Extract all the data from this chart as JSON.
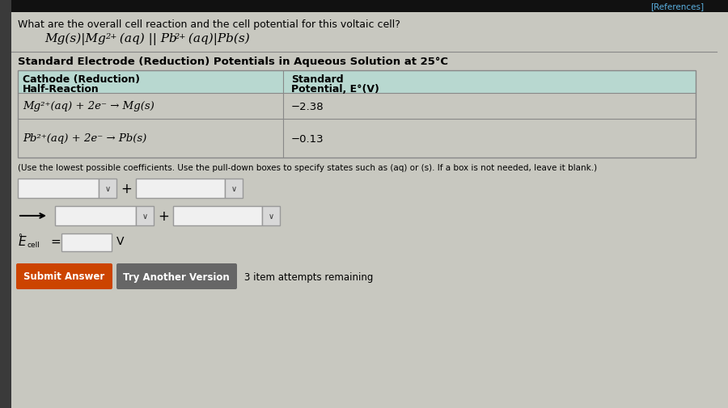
{
  "bg_color": "#c8c8c0",
  "left_strip_color": "#3a3a3a",
  "header_bar_color": "#111111",
  "references_text": "[References]",
  "references_color": "#5aafdf",
  "question": "What are the overall cell reaction and the cell potential for this voltaic cell?",
  "cell_notation_parts": [
    "Mg(s)",
    "|",
    "Mg",
    "2+",
    " (aq) || Pb",
    "2+",
    " (aq)",
    "|",
    "Pb(s)"
  ],
  "table_title": "Standard Electrode (Reduction) Potentials in Aqueous Solution at 25°C",
  "col1_h1": "Cathode (Reduction)",
  "col1_h2": "Half-Reaction",
  "col2_h1": "Standard",
  "col2_h2": "Potential, E°(V)",
  "row1_reaction": "Mg²⁺(aq) + 2e⁻ → Mg(s)",
  "row1_potential": "−2.38",
  "row2_reaction": "Pb²⁺(aq) + 2e⁻ → Pb(s)",
  "row2_potential": "−0.13",
  "instruction": "(Use the lowest possible coefficients. Use the pull-down boxes to specify states such as (aq) or (s). If a box is not needed, leave it blank.)",
  "submit_btn_text": "Submit Answer",
  "submit_btn_color": "#cc4400",
  "try_btn_text": "Try Another Version",
  "try_btn_color": "#666666",
  "attempts_text": "3 item attempts remaining",
  "box_color": "#f0f0f0",
  "box_border": "#999999",
  "dropdown_color": "#d8d8d8",
  "table_header_bg": "#b8d8d0"
}
